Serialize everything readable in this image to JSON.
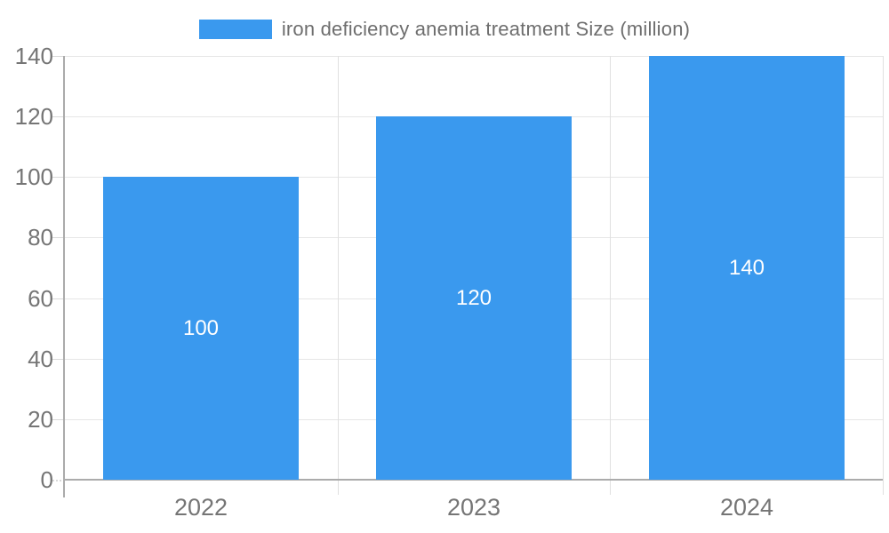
{
  "legend": {
    "label": "iron deficiency anemia treatment Size (million)"
  },
  "chart_data": {
    "type": "bar",
    "title": "",
    "series_name": "iron deficiency anemia treatment Size (million)",
    "categories": [
      "2022",
      "2023",
      "2024"
    ],
    "values": [
      100,
      120,
      140
    ],
    "value_labels": [
      "100",
      "120",
      "140"
    ],
    "xlabel": "",
    "ylabel": "",
    "ylim": [
      0,
      140
    ],
    "yticks": [
      0,
      20,
      40,
      60,
      80,
      100,
      120,
      140
    ],
    "ytick_labels": [
      "0",
      "20",
      "40",
      "60",
      "80",
      "100",
      "120",
      "140"
    ],
    "grid": true,
    "legend_position": "top",
    "bar_color": "#3a99ee",
    "value_label_color": "#ffffff"
  },
  "colors": {
    "background": "#ffffff",
    "axis_line": "#ababab",
    "grid_horizontal": "#e6e6e6",
    "grid_vertical": "#e0e0e0",
    "tick": "#d9d9d9",
    "axis_text": "#757575",
    "legend_text": "#6e6e6e"
  }
}
